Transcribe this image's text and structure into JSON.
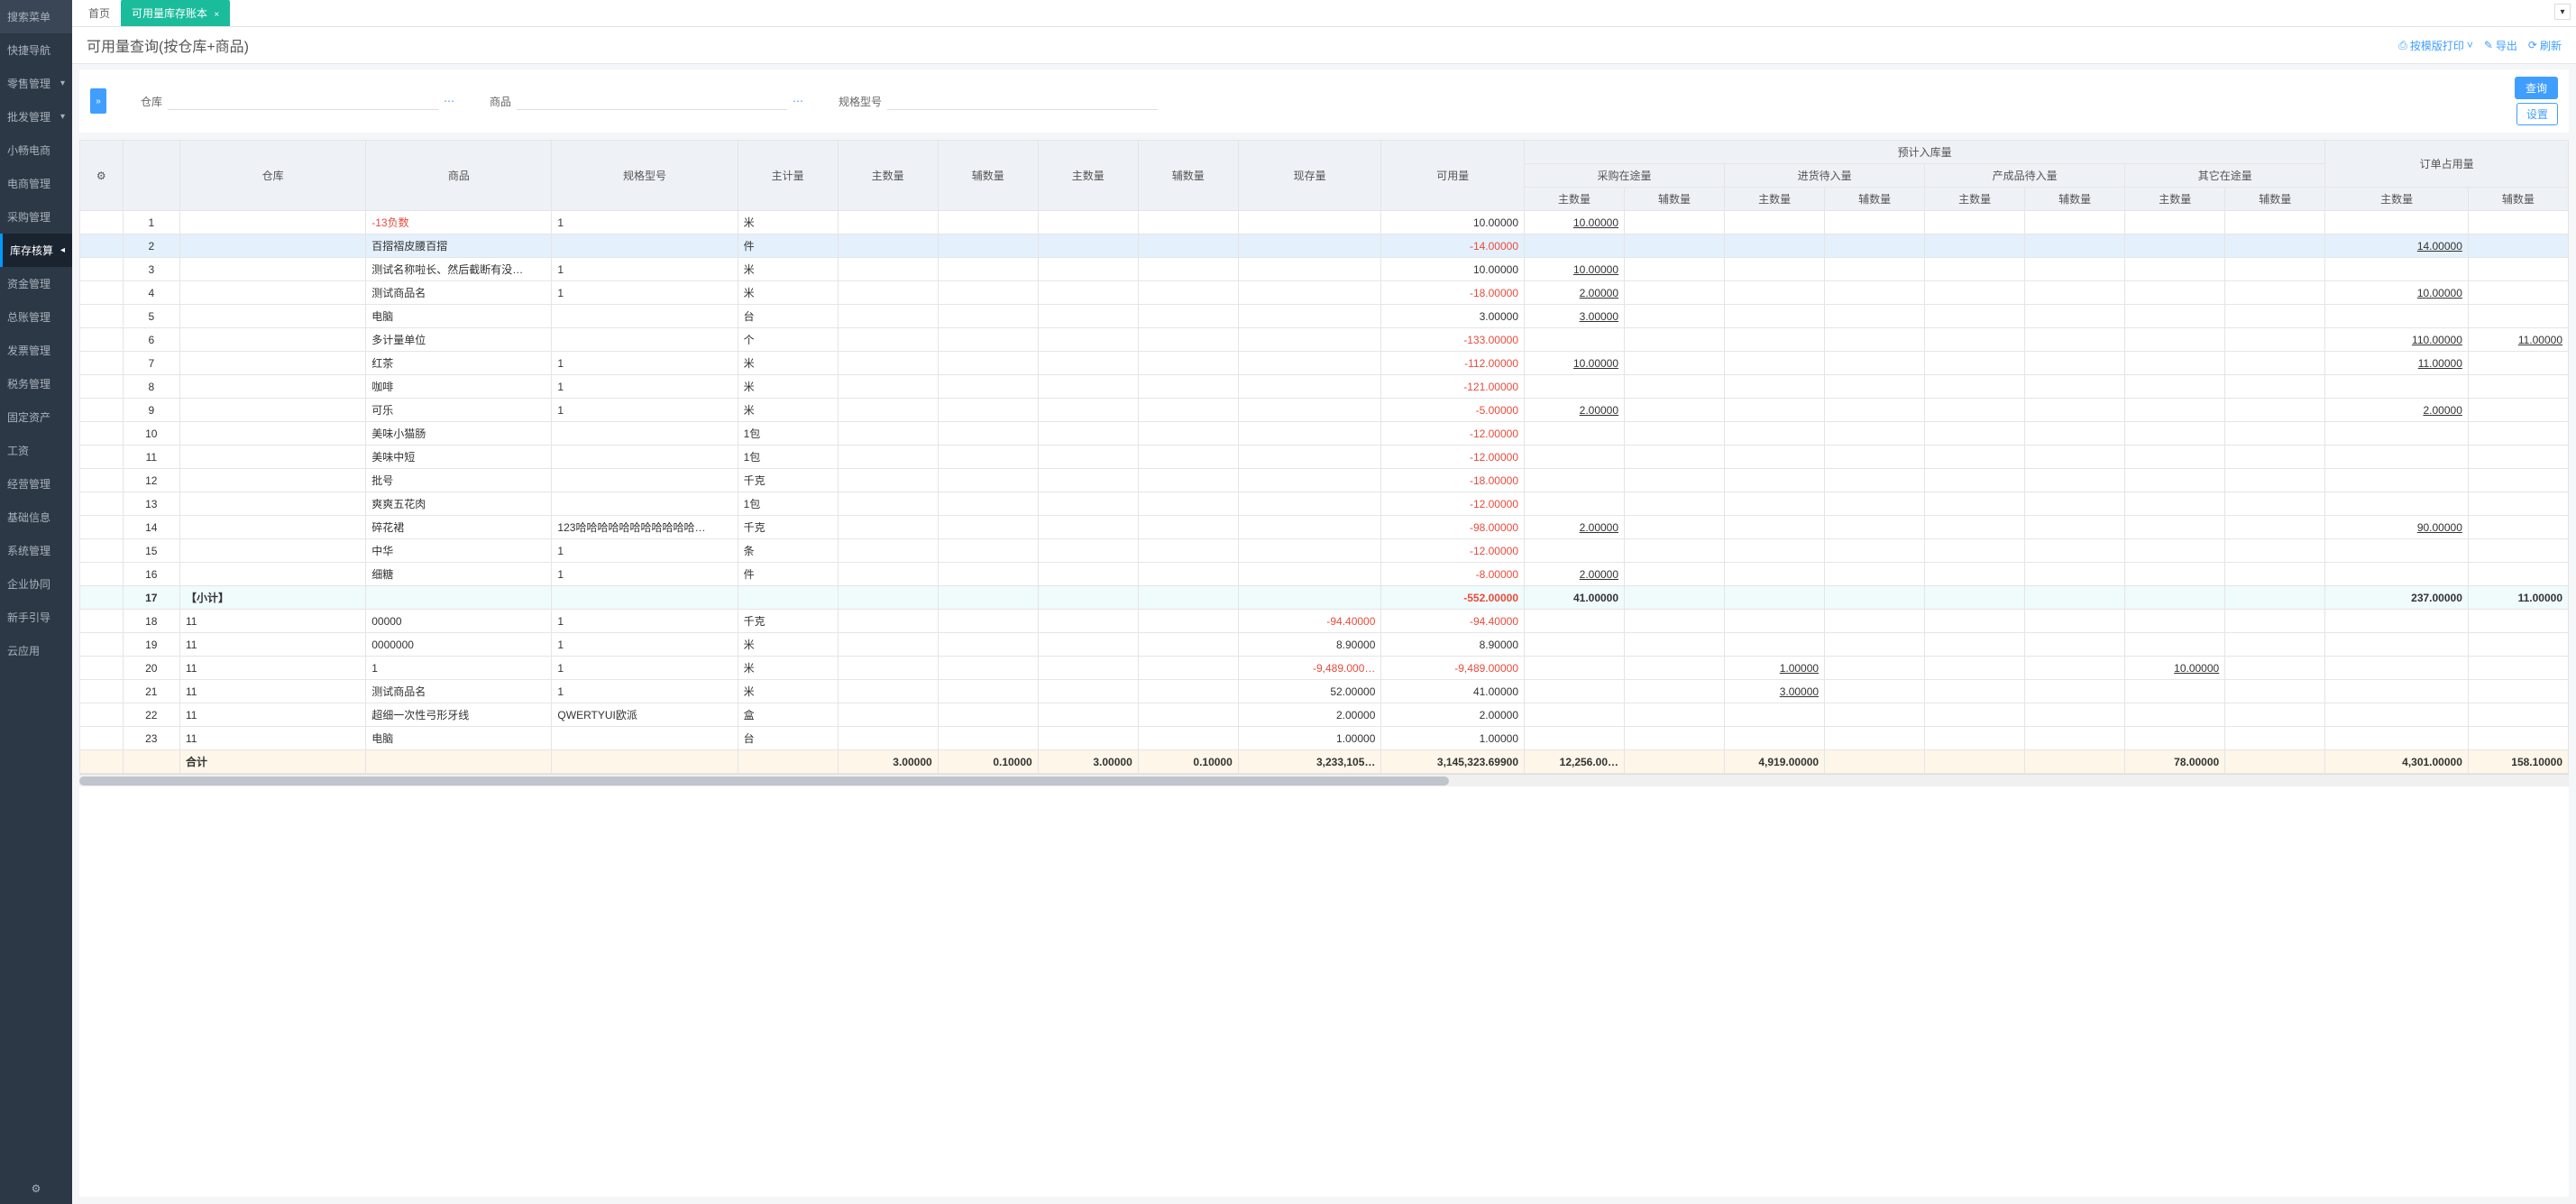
{
  "sidebar": {
    "items": [
      {
        "label": "搜索菜单",
        "exp": false
      },
      {
        "label": "快捷导航",
        "exp": false
      },
      {
        "label": "零售管理",
        "exp": true
      },
      {
        "label": "批发管理",
        "exp": true
      },
      {
        "label": "小畅电商",
        "exp": false
      },
      {
        "label": "电商管理",
        "exp": false
      },
      {
        "label": "采购管理",
        "exp": false
      },
      {
        "label": "库存核算",
        "exp": false,
        "active": true
      },
      {
        "label": "资金管理",
        "exp": false
      },
      {
        "label": "总账管理",
        "exp": false
      },
      {
        "label": "发票管理",
        "exp": false
      },
      {
        "label": "税务管理",
        "exp": false
      },
      {
        "label": "固定资产",
        "exp": false
      },
      {
        "label": "工资",
        "exp": false
      },
      {
        "label": "经营管理",
        "exp": false
      },
      {
        "label": "基础信息",
        "exp": false
      },
      {
        "label": "系统管理",
        "exp": false
      },
      {
        "label": "企业协同",
        "exp": false
      },
      {
        "label": "新手引导",
        "exp": false
      },
      {
        "label": "云应用",
        "exp": false
      }
    ]
  },
  "tabs": {
    "home": "首页",
    "active": "可用量库存账本",
    "close": "×"
  },
  "page": {
    "title": "可用量查询(按仓库+商品)"
  },
  "toolbar": {
    "print": "按模版打印",
    "export": "导出",
    "refresh": "刷新"
  },
  "filter": {
    "f1_label": "仓库",
    "f2_label": "商品",
    "f3_label": "规格型号",
    "query": "查询",
    "settings": "设置"
  },
  "table": {
    "headers": {
      "gear": "⚙",
      "warehouse": "仓库",
      "product": "商品",
      "spec": "规格型号",
      "main_unit": "主计量",
      "main_qty": "主数量",
      "aux_qty": "辅数量",
      "main_qty2": "主数量",
      "aux_qty2": "辅数量",
      "stock": "现存量",
      "usable": "可用量",
      "expected_in": "预计入库量",
      "purchase_transit": "采购在途量",
      "arrival_pending": "进货待入量",
      "finished_pending": "产成品待入量",
      "other_transit": "其它在途量",
      "order_occupy": "订单占用量",
      "sub_main": "主数量",
      "sub_aux": "辅数量"
    },
    "rows": [
      {
        "idx": "1",
        "wh": "",
        "prod": "-13负数",
        "prodRed": true,
        "spec": "1",
        "unit": "米",
        "usable": "10.00000",
        "pur": "10.00000"
      },
      {
        "idx": "2",
        "wh": "",
        "prod": "百摺褶皮腰百摺",
        "spec": "",
        "unit": "件",
        "usable": "-14.00000",
        "usableRed": true,
        "occ": "14.00000",
        "hl": true
      },
      {
        "idx": "3",
        "wh": "",
        "prod": "测试名称啦长、然后截断有没…",
        "spec": "1",
        "unit": "米",
        "usable": "10.00000",
        "pur": "10.00000"
      },
      {
        "idx": "4",
        "wh": "",
        "prod": "测试商品名",
        "spec": "1",
        "unit": "米",
        "usable": "-18.00000",
        "usableRed": true,
        "pur": "2.00000",
        "occ": "10.00000"
      },
      {
        "idx": "5",
        "wh": "",
        "prod": "电脑",
        "spec": "",
        "unit": "台",
        "usable": "3.00000",
        "pur": "3.00000"
      },
      {
        "idx": "6",
        "wh": "",
        "prod": "多计量单位",
        "spec": "",
        "unit": "个",
        "usable": "-133.00000",
        "usableRed": true,
        "occ": "110.00000",
        "occAux": "11.00000"
      },
      {
        "idx": "7",
        "wh": "",
        "prod": "红茶",
        "spec": "1",
        "unit": "米",
        "usable": "-112.00000",
        "usableRed": true,
        "pur": "10.00000",
        "occ": "11.00000"
      },
      {
        "idx": "8",
        "wh": "",
        "prod": "咖啡",
        "spec": "1",
        "unit": "米",
        "usable": "-121.00000",
        "usableRed": true
      },
      {
        "idx": "9",
        "wh": "",
        "prod": "可乐",
        "spec": "1",
        "unit": "米",
        "usable": "-5.00000",
        "usableRed": true,
        "pur": "2.00000",
        "occ": "2.00000"
      },
      {
        "idx": "10",
        "wh": "",
        "prod": "美味小猫肠",
        "spec": "",
        "unit": "1包",
        "usable": "-12.00000",
        "usableRed": true
      },
      {
        "idx": "11",
        "wh": "",
        "prod": "美味中短",
        "spec": "",
        "unit": "1包",
        "usable": "-12.00000",
        "usableRed": true
      },
      {
        "idx": "12",
        "wh": "",
        "prod": "批号",
        "spec": "",
        "unit": "千克",
        "usable": "-18.00000",
        "usableRed": true
      },
      {
        "idx": "13",
        "wh": "",
        "prod": "爽爽五花肉",
        "spec": "",
        "unit": "1包",
        "usable": "-12.00000",
        "usableRed": true
      },
      {
        "idx": "14",
        "wh": "",
        "prod": "碎花裙",
        "spec": "123哈哈哈哈哈哈哈哈哈哈哈…",
        "unit": "千克",
        "usable": "-98.00000",
        "usableRed": true,
        "pur": "2.00000",
        "occ": "90.00000"
      },
      {
        "idx": "15",
        "wh": "",
        "prod": "中华",
        "spec": "1",
        "unit": "条",
        "usable": "-12.00000",
        "usableRed": true
      },
      {
        "idx": "16",
        "wh": "",
        "prod": "细糖",
        "spec": "1",
        "unit": "件",
        "usable": "-8.00000",
        "usableRed": true,
        "pur": "2.00000"
      },
      {
        "idx": "17",
        "wh": "【小计】",
        "prod": "",
        "spec": "",
        "unit": "",
        "usable": "-552.00000",
        "usableRed": true,
        "pur": "41.00000",
        "occ": "237.00000",
        "occAux": "11.00000",
        "subtotal": true
      },
      {
        "idx": "18",
        "wh": "11",
        "prod": "00000",
        "spec": "1",
        "unit": "千克",
        "stock": "-94.40000",
        "stockRed": true,
        "usable": "-94.40000",
        "usableRed": true
      },
      {
        "idx": "19",
        "wh": "11",
        "prod": "0000000",
        "spec": "1",
        "unit": "米",
        "stock": "8.90000",
        "usable": "8.90000"
      },
      {
        "idx": "20",
        "wh": "11",
        "prod": "1",
        "spec": "1",
        "unit": "米",
        "stock": "-9,489.000…",
        "stockRed": true,
        "usable": "-9,489.00000",
        "usableRed": true,
        "arr": "1.00000",
        "otm": "10.00000"
      },
      {
        "idx": "21",
        "wh": "11",
        "prod": "测试商品名",
        "spec": "1",
        "unit": "米",
        "stock": "52.00000",
        "usable": "41.00000",
        "arr": "3.00000"
      },
      {
        "idx": "22",
        "wh": "11",
        "prod": "超细一次性弓形牙线",
        "spec": "QWERTYUI欧派",
        "unit": "盒",
        "stock": "2.00000",
        "usable": "2.00000"
      },
      {
        "idx": "23",
        "wh": "11",
        "prod": "电脑",
        "spec": "",
        "unit": "台",
        "stock": "1.00000",
        "usable": "1.00000"
      }
    ],
    "total": {
      "label": "合计",
      "c5": "3.00000",
      "c6": "0.10000",
      "c7": "3.00000",
      "c8": "0.10000",
      "stock": "3,233,105…",
      "usable": "3,145,323.69900",
      "pur": "12,256.00…",
      "arr": "4,919.00000",
      "otm": "78.00000",
      "occ": "4,301.00000",
      "occAux": "158.10000"
    }
  }
}
